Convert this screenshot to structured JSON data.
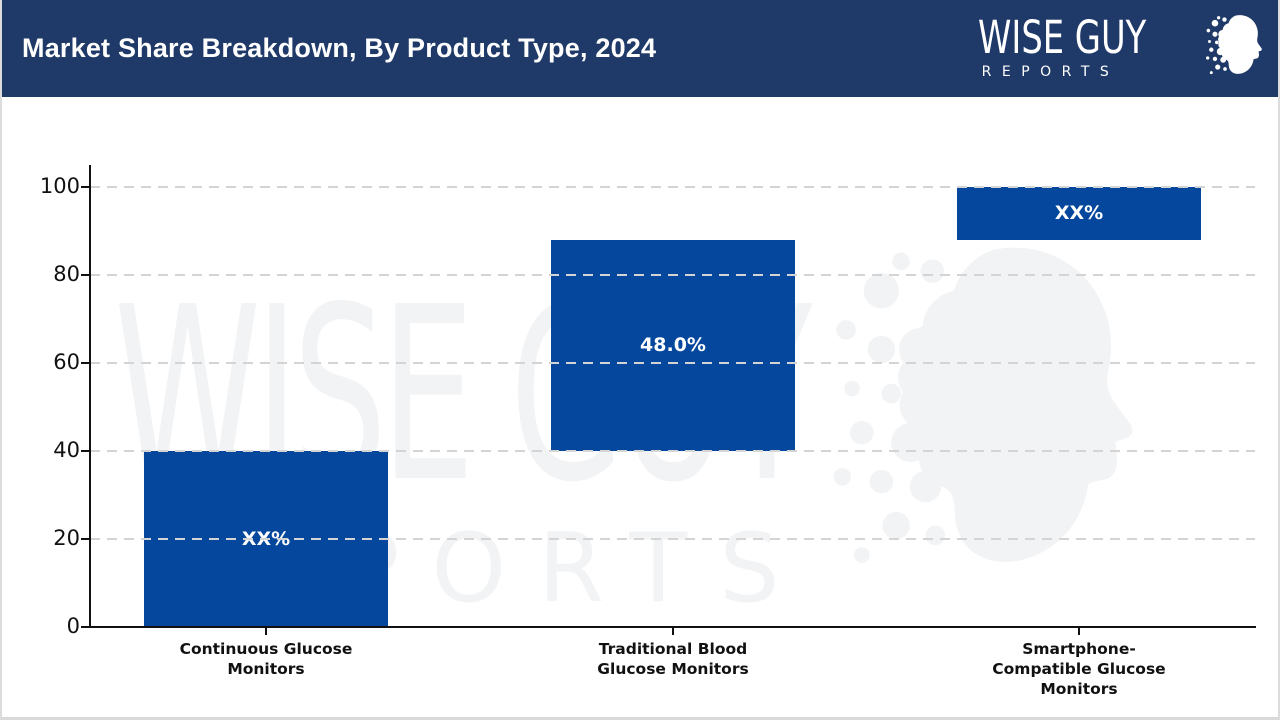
{
  "header": {
    "title": "Market Share Breakdown, By Product Type, 2024",
    "bg_color": "#1f3a68",
    "logo": {
      "line1": "WISE GUY",
      "line2": "REPORTS",
      "head_icon": "head-profile-dots-icon"
    }
  },
  "watermark": {
    "line1": "WISE GUY",
    "line2": "REPORTS",
    "head_icon": "head-profile-dots-watermark-icon"
  },
  "chart_data": {
    "type": "bar",
    "subtype": "waterfall",
    "title": "Market Share Breakdown, By Product Type, 2024",
    "categories": [
      "Continuous Glucose\nMonitors",
      "Traditional Blood\nGlucose Monitors",
      "Smartphone-\nCompatible Glucose\nMonitors"
    ],
    "bars": [
      {
        "category": "Continuous Glucose Monitors",
        "from": 0,
        "to": 40,
        "label": "XX%"
      },
      {
        "category": "Traditional Blood Glucose Monitors",
        "from": 40,
        "to": 88,
        "label": "48.0%"
      },
      {
        "category": "Smartphone-Compatible Glucose Monitors",
        "from": 88,
        "to": 100,
        "label": "XX%"
      }
    ],
    "yticks": [
      0,
      20,
      40,
      60,
      80,
      100
    ],
    "ylim": [
      0,
      105
    ],
    "xlabel": "",
    "ylabel": "",
    "grid": "horizontal-dashed",
    "legend": "none",
    "bar_color": "#04479c",
    "bar_label_color": "#ffffff",
    "grid_color": "#d4d4d4",
    "axis_color": "#111111"
  }
}
